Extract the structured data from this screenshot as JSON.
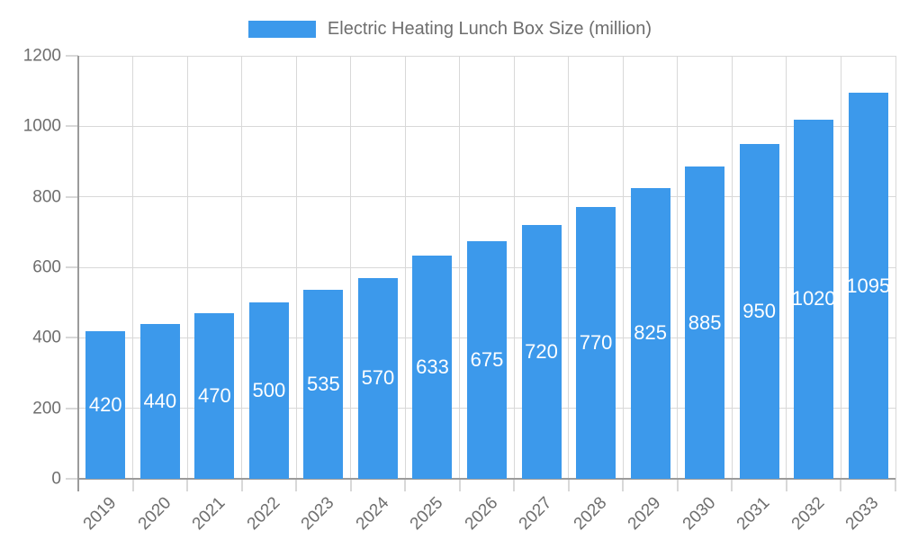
{
  "chart_data": {
    "type": "bar",
    "title": "Electric Heating Lunch Box Size (million)",
    "legend": {
      "label": "Electric Heating Lunch Box Size (million)",
      "position": "top-center"
    },
    "categories": [
      "2019",
      "2020",
      "2021",
      "2022",
      "2023",
      "2024",
      "2025",
      "2026",
      "2027",
      "2028",
      "2029",
      "2030",
      "2031",
      "2032",
      "2033"
    ],
    "series": [
      {
        "name": "Electric Heating Lunch Box Size (million)",
        "values": [
          420,
          440,
          470,
          500,
          535,
          570,
          633,
          675,
          720,
          770,
          825,
          885,
          950,
          1020,
          1095
        ]
      }
    ],
    "xlabel": "",
    "ylabel": "",
    "ylim": [
      0,
      1200
    ],
    "ytick_step": 200,
    "yticks": [
      0,
      200,
      400,
      600,
      800,
      1000,
      1200
    ],
    "grid": "horizontal-and-vertical",
    "x_tick_rotation": 45,
    "value_labels": "inside-center-white",
    "colors": {
      "bar": "#3C99EB",
      "grid": "#D8D8D8",
      "axis_line": "#9B9B9B",
      "axis_text": "#6E6E6E",
      "value_text": "#FFFFFF",
      "background": "#FFFFFF"
    }
  }
}
